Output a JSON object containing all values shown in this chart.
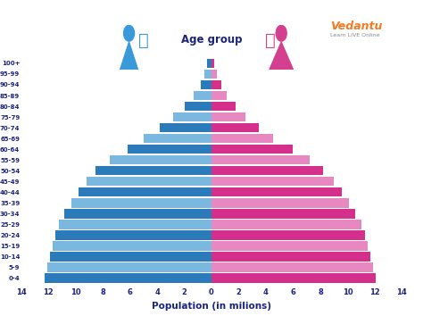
{
  "age_groups": [
    "100+",
    "95-99",
    "90-94",
    "85-89",
    "80-84",
    "75-79",
    "70-74",
    "65-69",
    "60-64",
    "55-59",
    "50-54",
    "45-49",
    "40-44",
    "35-39",
    "30-34",
    "25-29",
    "20-24",
    "15-19",
    "10-14",
    "5-9",
    "0-4"
  ],
  "male": [
    0.3,
    0.5,
    0.8,
    1.3,
    2.0,
    2.8,
    3.8,
    5.0,
    6.2,
    7.5,
    8.5,
    9.2,
    9.8,
    10.3,
    10.8,
    11.2,
    11.5,
    11.7,
    11.9,
    12.1,
    12.3
  ],
  "female": [
    0.2,
    0.4,
    0.7,
    1.1,
    1.8,
    2.5,
    3.5,
    4.5,
    6.0,
    7.2,
    8.2,
    9.0,
    9.6,
    10.1,
    10.6,
    11.0,
    11.3,
    11.5,
    11.7,
    11.9,
    12.1
  ],
  "male_dark": "#2b7bba",
  "male_light": "#7ab8e0",
  "female_dark": "#d42f8a",
  "female_light": "#e888c0",
  "bg_color": "#ffffff",
  "text_color": "#1a237e",
  "axis_label_color": "#1a237e",
  "title": "Age group",
  "xlabel": "Population (in milions)",
  "xlim": 14,
  "vedantu_orange": "#f47920",
  "vedantu_text": "#666666",
  "male_icon_color": "#3a9ad9",
  "female_icon_color": "#d44090"
}
